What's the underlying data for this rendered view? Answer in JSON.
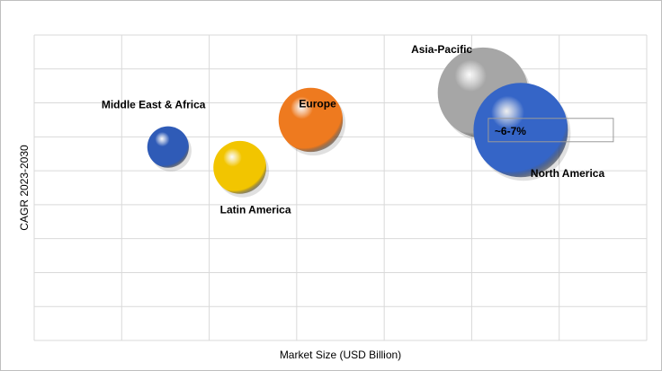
{
  "chart_data": {
    "type": "bubble",
    "xlabel": "Market Size (USD Billion)",
    "ylabel": "CAGR 2023-2030",
    "grid": true,
    "series": [
      {
        "name": "Middle East & Africa",
        "x": 1.53,
        "y": 5.7,
        "size": 0.55,
        "color": "#2f5bb7"
      },
      {
        "name": "Latin America",
        "x": 2.35,
        "y": 5.1,
        "size": 0.7,
        "color": "#f2c500"
      },
      {
        "name": "Europe",
        "x": 3.16,
        "y": 6.5,
        "size": 0.85,
        "color": "#ee7a1f"
      },
      {
        "name": "Asia-Pacific",
        "x": 5.13,
        "y": 7.3,
        "size": 1.2,
        "color": "#a6a6a6"
      },
      {
        "name": "North America",
        "x": 5.56,
        "y": 6.2,
        "size": 1.25,
        "color": "#3565c7"
      }
    ],
    "annotation": {
      "text": "~6-7%"
    }
  }
}
